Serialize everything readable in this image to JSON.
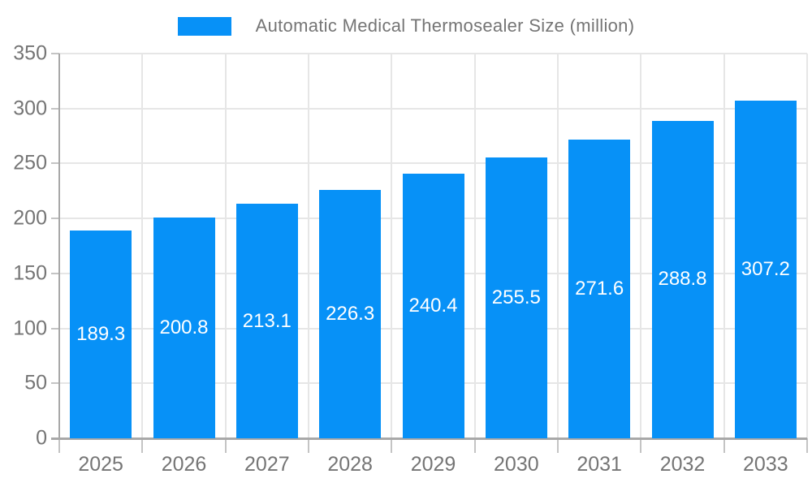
{
  "chart_data": {
    "type": "bar",
    "title": "Automatic Medical Thermosealer Size (million)",
    "legend_position": "top-center",
    "categories": [
      "2025",
      "2026",
      "2027",
      "2028",
      "2029",
      "2030",
      "2031",
      "2032",
      "2033"
    ],
    "series": [
      {
        "name": "Automatic Medical Thermosealer Size (million)",
        "values": [
          189.3,
          200.8,
          213.1,
          226.3,
          240.4,
          255.5,
          271.6,
          288.8,
          307.2
        ]
      }
    ],
    "xlabel": "",
    "ylabel": "",
    "ylim": [
      0,
      350
    ],
    "yticks": [
      0,
      50,
      100,
      150,
      200,
      250,
      300,
      350
    ],
    "grid": true,
    "value_labels": "inside-center",
    "colors": {
      "bar": "#0791f7",
      "value_label": "#ffffff",
      "axis_label": "#757575",
      "legend_label": "#757575",
      "grid_line": "#e6e6e6",
      "axis_line": "#a8a8a8",
      "tick": "#c4c4c4",
      "background": "#ffffff"
    }
  }
}
